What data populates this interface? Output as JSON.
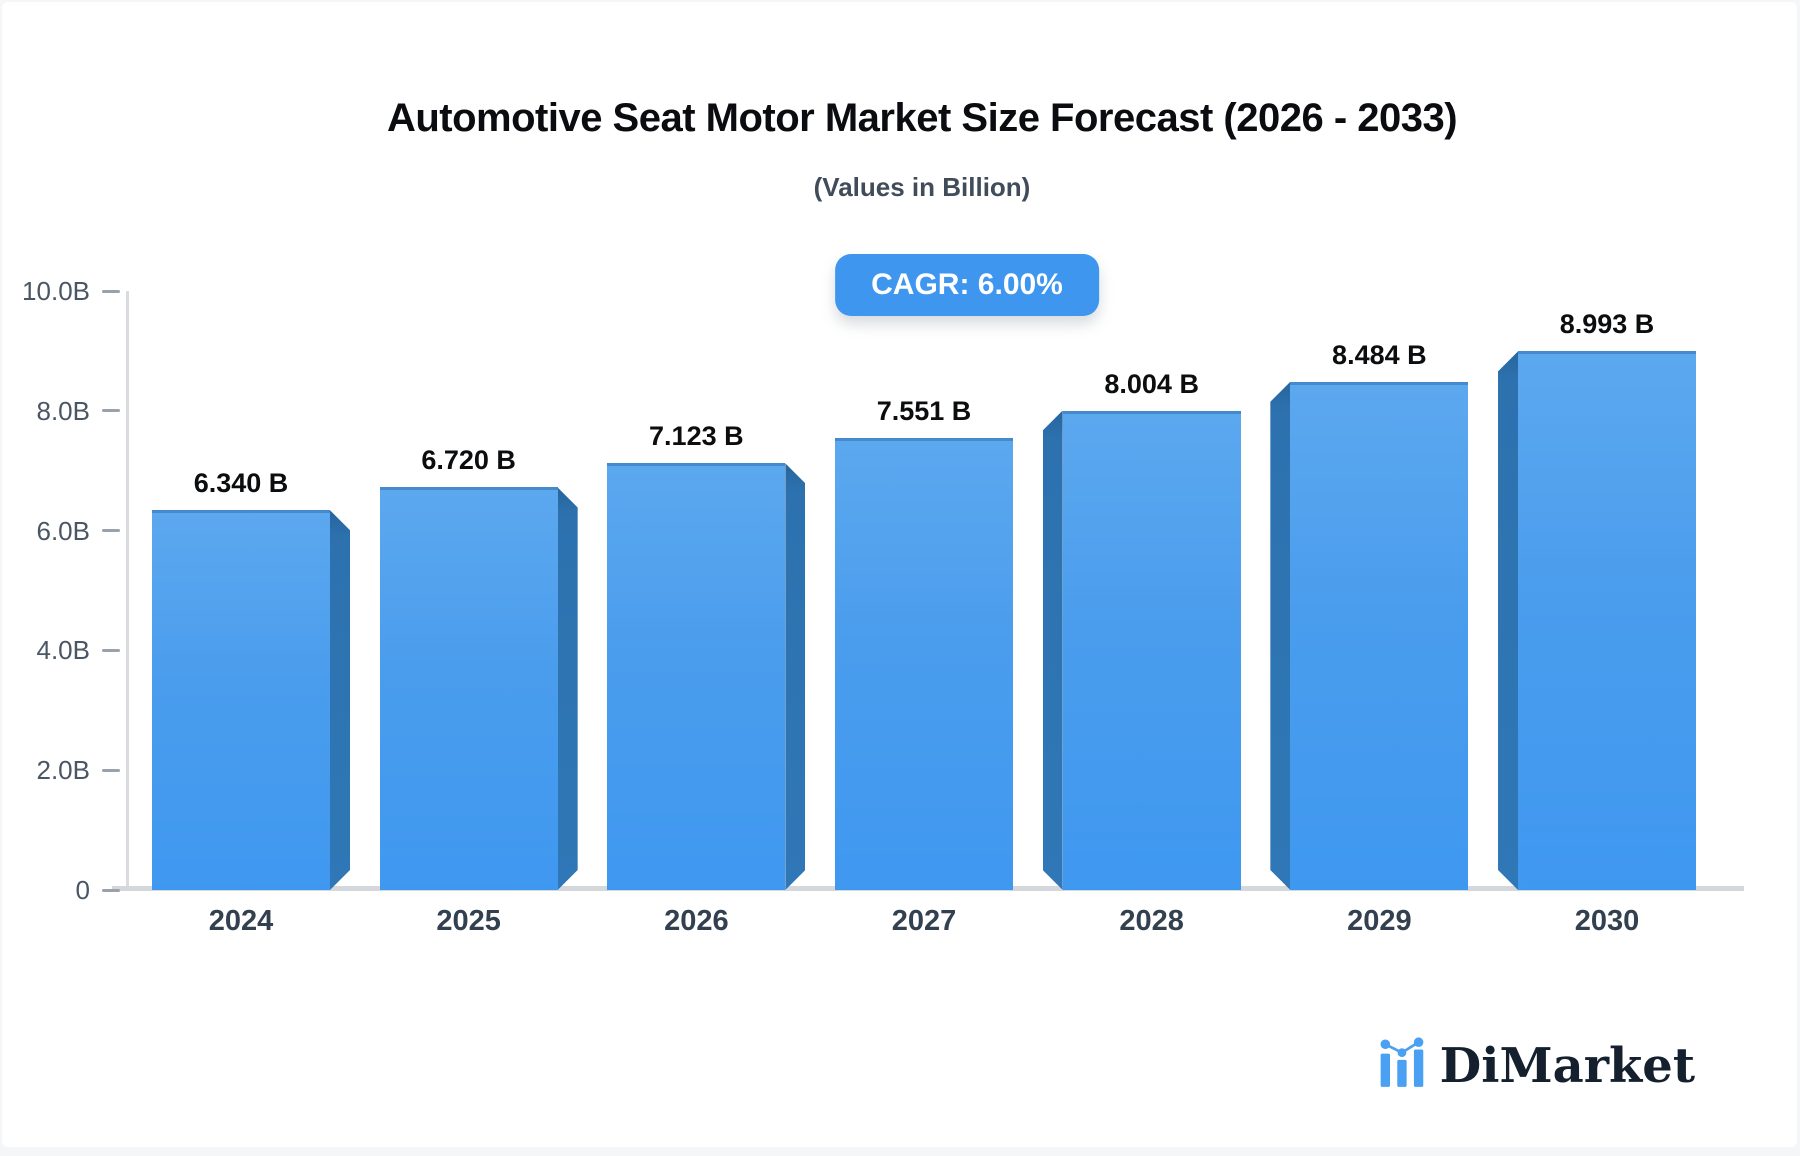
{
  "header": {
    "title": "Automotive Seat Motor Market Size Forecast (2026 - 2033)",
    "subtitle": "(Values in Billion)",
    "cagr_badge": "CAGR: 6.00%"
  },
  "chart_data": {
    "type": "bar",
    "title": "Automotive Seat Motor Market Size Forecast (2026 - 2033)",
    "subtitle": "(Values in Billion)",
    "annotation": "CAGR: 6.00%",
    "categories": [
      "2024",
      "2025",
      "2026",
      "2027",
      "2028",
      "2029",
      "2030"
    ],
    "values": [
      6.34,
      6.72,
      7.123,
      7.551,
      8.004,
      8.484,
      8.993
    ],
    "value_labels": [
      "6.340 B",
      "6.720 B",
      "7.123 B",
      "7.551 B",
      "8.004 B",
      "8.484 B",
      "8.993 B"
    ],
    "unit": "Billion",
    "ylim": [
      0,
      10
    ],
    "yticks": [
      0,
      2,
      4,
      6,
      8,
      10
    ],
    "ytick_labels": [
      "0",
      "2.0B",
      "4.0B",
      "6.0B",
      "8.0B",
      "10.0B"
    ],
    "grid": false,
    "legend": "none",
    "style": "3d-extruded-bars",
    "colors": {
      "bar_face_top": "#5CA8EF",
      "bar_face_bottom": "#3F98F0",
      "bar_side": "#2E74B2",
      "badge_background": "#3E96EF",
      "badge_text": "#FFFFFF",
      "axis_line": "#D8DBE0",
      "tick_text": "#4B5665",
      "category_text": "#33404F",
      "value_text": "#0B0D0F"
    }
  },
  "footer": {
    "brand": "DiMarket",
    "logo_icon": "bar-chart-trend-icon",
    "brand_color": "#15202E",
    "icon_color": "#4AA0F2"
  }
}
